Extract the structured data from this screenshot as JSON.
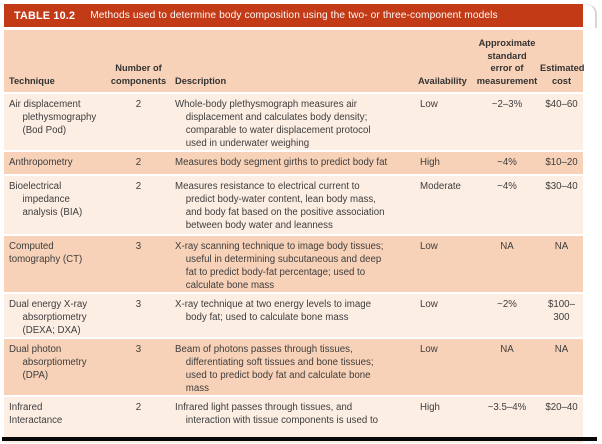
{
  "table": {
    "title_bar": {
      "label": "TABLE 10.2",
      "title": "Methods used to determine body composition using the two- or three-component models"
    },
    "columns": {
      "technique": "Technique",
      "components": "Number of\ncomponents",
      "description": "Description",
      "availability": "Availability",
      "sem": "Approximate\nstandard\nerror of\nmeasurement",
      "cost": "Estimated\ncost"
    },
    "rows": [
      {
        "technique": "Air displacement\n     plethysmography\n     (Bod Pod)",
        "components": "2",
        "description": "Whole-body plethysmograph measures air\n    displacement and calculates body density;\n    comparable to water displacement protocol\n    used in underwater weighing",
        "availability": "Low",
        "sem": "~2–3%",
        "cost": "$40–60",
        "shade": "light"
      },
      {
        "technique": "Anthropometry",
        "components": "2",
        "description": "Measures body segment girths to predict body fat",
        "availability": "High",
        "sem": "~4%",
        "cost": "$10–20",
        "shade": "dark"
      },
      {
        "technique": "Bioelectrical\n     impedance\n     analysis (BIA)",
        "components": "2",
        "description": "Measures resistance to electrical current to\n    predict body-water content, lean body mass,\n    and body fat based on the positive association\n    between body water and leanness",
        "availability": "Moderate",
        "sem": "~4%",
        "cost": "$30–40",
        "shade": "light"
      },
      {
        "technique": "Computed\ntomography (CT)",
        "components": "3",
        "description": "X-ray scanning technique to image body tissues;\n    useful in determining subcutaneous and deep\n    fat to predict body-fat percentage; used to\n    calculate bone mass",
        "availability": "Low",
        "sem": "NA",
        "cost": "NA",
        "shade": "dark"
      },
      {
        "technique": "Dual energy X-ray\n     absorptiometry\n     (DEXA; DXA)",
        "components": "3",
        "description": "X-ray technique at two energy levels to image\n    body fat; used to calculate bone mass",
        "availability": "Low",
        "sem": "~2%",
        "cost": "$100–\n300",
        "shade": "light"
      },
      {
        "technique": "Dual photon\n     absorptiometry\n     (DPA)",
        "components": "3",
        "description": "Beam of photons passes through tissues,\n    differentiating soft tissues and bone tissues;\n    used to predict body fat and calculate bone\n    mass",
        "availability": "Low",
        "sem": "NA",
        "cost": "NA",
        "shade": "dark"
      },
      {
        "technique": "Infrared\nInteractance",
        "components": "2",
        "description": "Infrared light passes through tissues, and\n    interaction with tissue components is used to",
        "availability": "High",
        "sem": "~3.5–4%",
        "cost": "$20–40",
        "shade": "light"
      }
    ]
  },
  "colors": {
    "accent_red": "#c23a16",
    "row_light": "#fdeee4",
    "row_dark": "#f8d2b8",
    "separator": "#ffffff",
    "text": "#3d3d3d",
    "bottom_bar": "#070707"
  }
}
